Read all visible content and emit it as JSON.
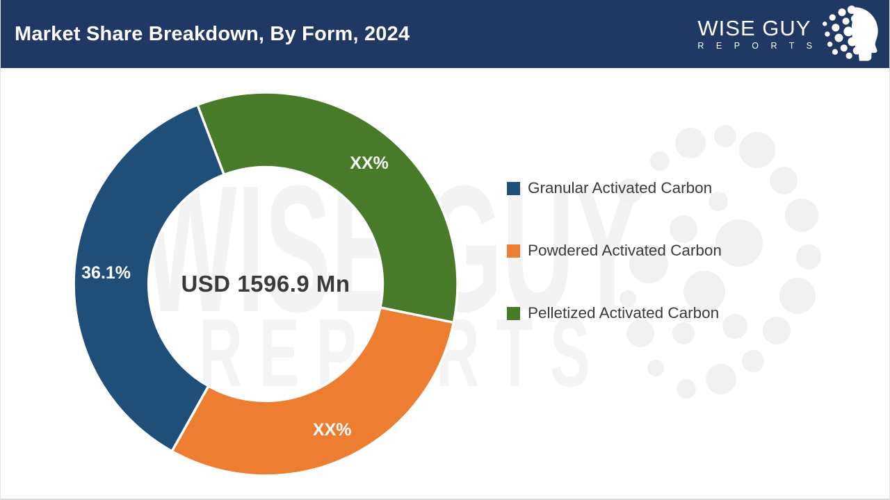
{
  "header": {
    "title": "Market Share Breakdown, By Form, 2024",
    "background_color": "#1F3864",
    "logo": {
      "name": "WISE GUY",
      "tagline": "R E P O R T S"
    }
  },
  "watermark": {
    "line1": "WISE GUY",
    "line2": "R E P O R T S"
  },
  "chart_data": {
    "type": "pie",
    "subtype": "donut",
    "title": "Market Share Breakdown, By Form, 2024",
    "center_label": "USD 1596.9 Mn",
    "unit": "percent of market share",
    "start_angle_deg": 110.8,
    "direction": "clockwise",
    "inner_radius_ratio": 0.61,
    "legend_position": "right",
    "segments": [
      {
        "name": "Pelletized Activated Carbon",
        "value": 34.0,
        "label": "XX%",
        "color": "#477A29"
      },
      {
        "name": "Powdered Activated Carbon",
        "value": 29.9,
        "label": "XX%",
        "color": "#ED7D31"
      },
      {
        "name": "Granular Activated Carbon",
        "value": 36.1,
        "label": "36.1%",
        "color": "#1F4E79"
      }
    ]
  },
  "legend": {
    "items": [
      {
        "label": "Granular Activated Carbon",
        "color": "#1F4E79"
      },
      {
        "label": "Powdered Activated Carbon",
        "color": "#ED7D31"
      },
      {
        "label": "Pelletized Activated Carbon",
        "color": "#477A29"
      }
    ]
  }
}
